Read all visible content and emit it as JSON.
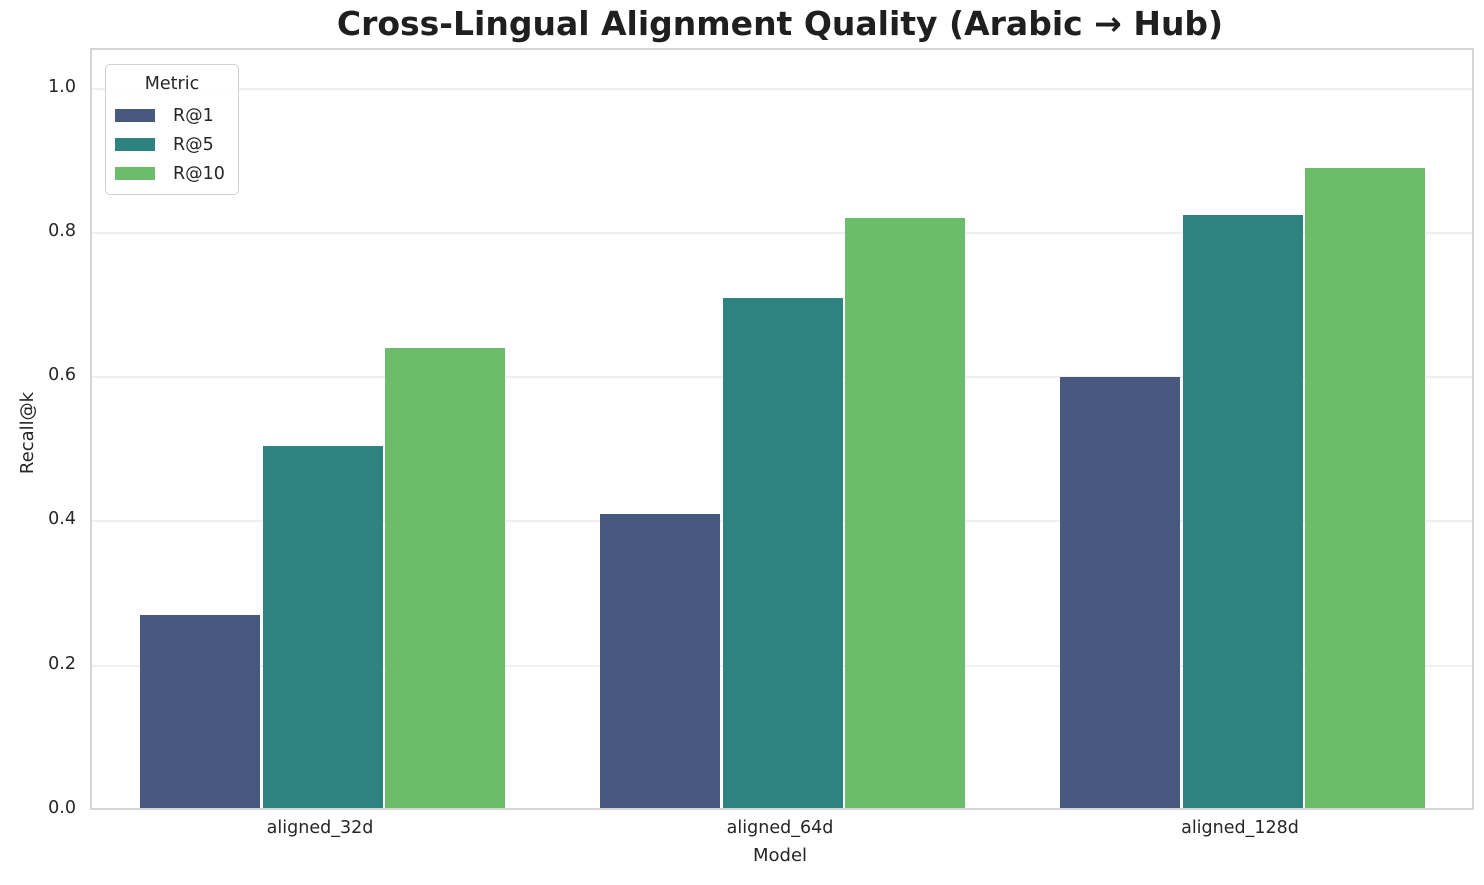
{
  "chart_data": {
    "type": "bar",
    "title": "Cross-Lingual Alignment Quality (Arabic → Hub)",
    "xlabel": "Model",
    "ylabel": "Recall@k",
    "categories": [
      "aligned_32d",
      "aligned_64d",
      "aligned_128d"
    ],
    "series": [
      {
        "name": "R@1",
        "color": "#47597e",
        "values": [
          0.27,
          0.41,
          0.6
        ]
      },
      {
        "name": "R@5",
        "color": "#2e8380",
        "values": [
          0.505,
          0.71,
          0.825
        ]
      },
      {
        "name": "R@10",
        "color": "#6bbd6c",
        "values": [
          0.64,
          0.82,
          0.89
        ]
      }
    ],
    "legend": {
      "title": "Metric",
      "position": "upper left"
    },
    "ylim": [
      0,
      1.05
    ],
    "yticks": [
      0.0,
      0.2,
      0.4,
      0.6,
      0.8,
      1.0
    ],
    "grid": "horizontal"
  },
  "colors": {
    "text": "#262626",
    "title_text": "#1f1f1f",
    "grid": "#efefef",
    "spine": "#d5d5d5",
    "background": "#ffffff"
  }
}
